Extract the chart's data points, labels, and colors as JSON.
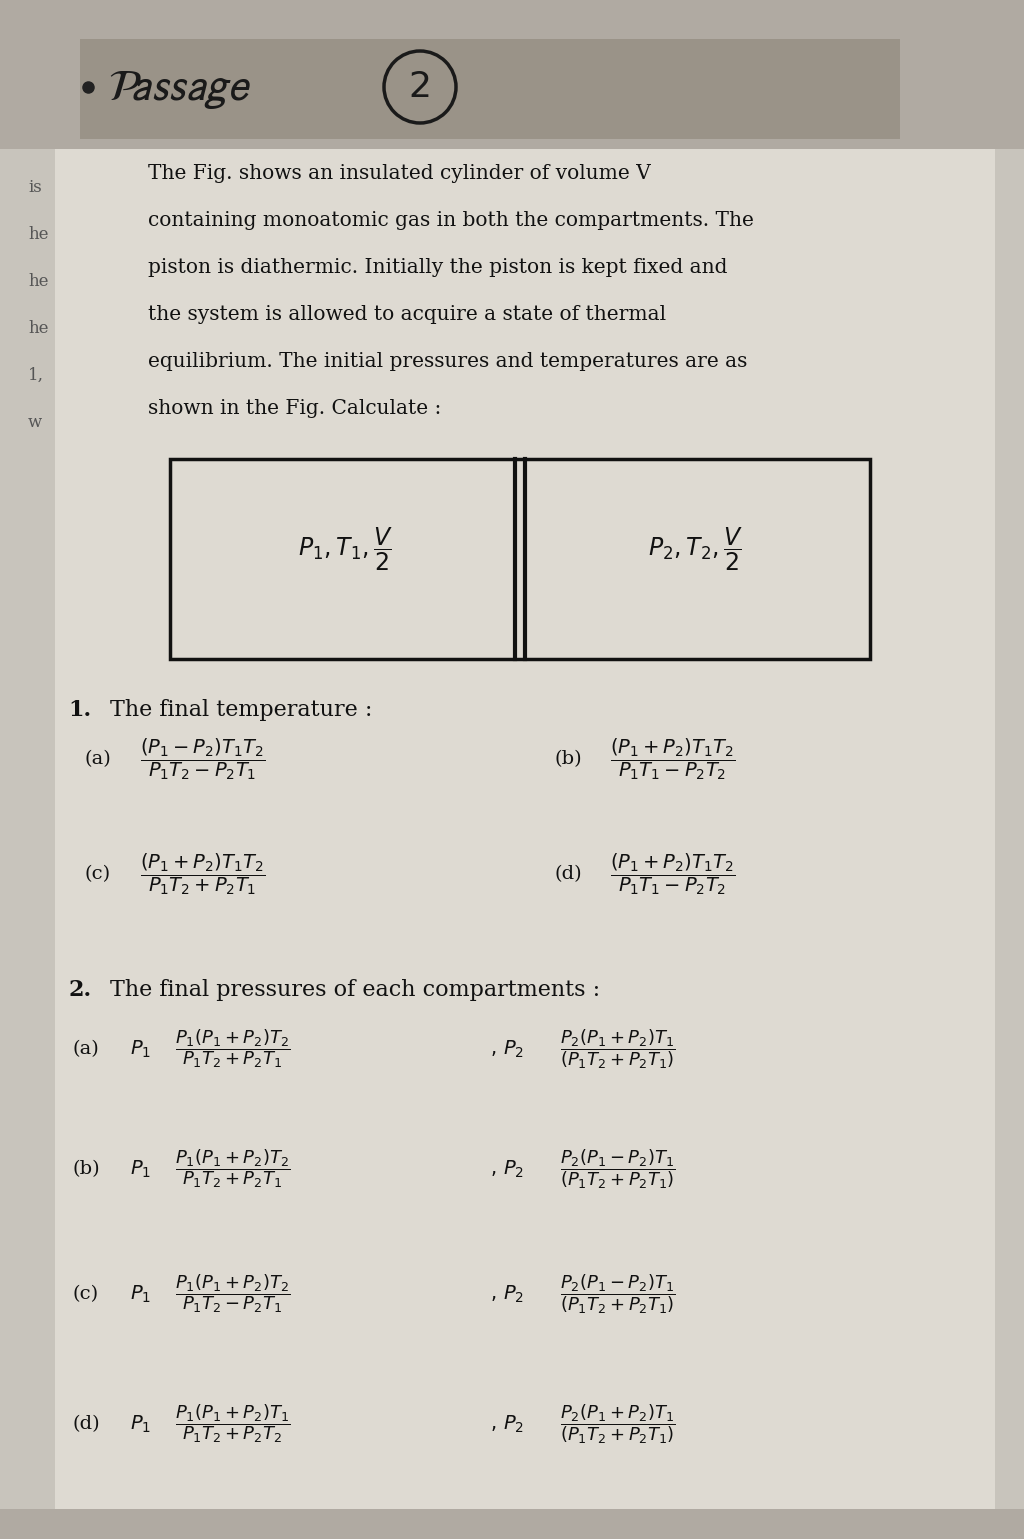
{
  "bg_color": "#c8c4bc",
  "page_bg": "#e0dcd4",
  "header_bg": "#a0998e",
  "text_color": "#111111",
  "margin_color": "#555555",
  "passage_lines": [
    "The Fig. shows an insulated cylinder of volume V",
    "containing monoatomic gas in both the compartments. The",
    "piston is diathermic. Initially the piston is kept fixed and",
    "the system is allowed to acquire a state of thermal",
    "equilibrium. The initial pressures and temperatures are as",
    "shown in the Fig. Calculate :"
  ],
  "margin_words": [
    "is",
    "he",
    "he",
    "he",
    "1,",
    "w"
  ],
  "q1_label": "1.",
  "q1_text": "The final temperature :",
  "q2_label": "2.",
  "q2_text": "The final pressures of each compartments :"
}
